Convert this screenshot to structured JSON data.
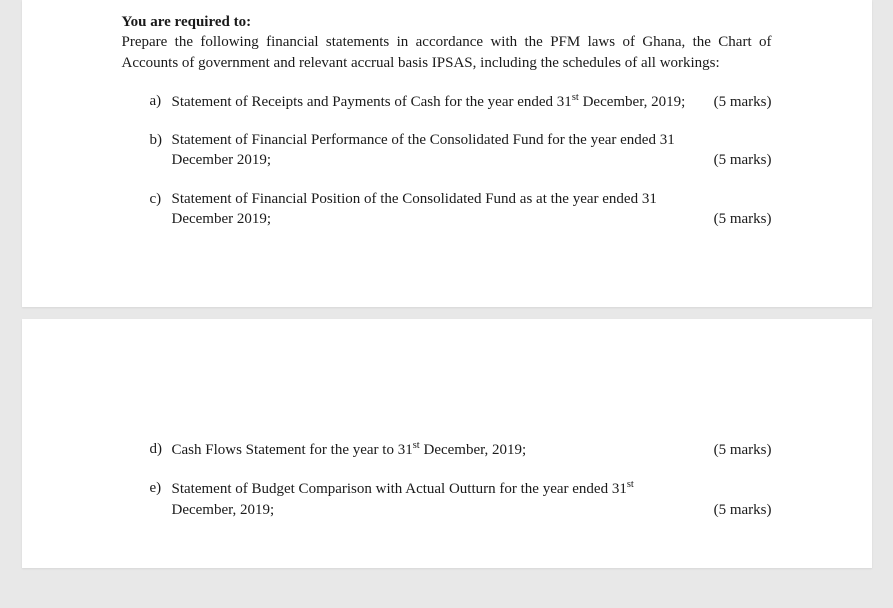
{
  "heading": "You are required to:",
  "intro": "Prepare the following financial statements in accordance with the PFM laws of Ghana, the Chart of Accounts of government and relevant accrual basis IPSAS, including the schedules of all workings:",
  "items_top": [
    {
      "bullet": "a)",
      "text_html": "Statement of Receipts and Payments of Cash for the year ended 31<sup>st</sup> December, 2019;",
      "marks": "(5 marks)"
    },
    {
      "bullet": "b)",
      "text_html": "Statement of Financial Performance of the Consolidated Fund for the year ended 31 December 2019;",
      "marks": "(5 marks)"
    },
    {
      "bullet": "c)",
      "text_html": "Statement of Financial Position of the Consolidated Fund as at the year ended 31 December 2019;",
      "marks": "(5 marks)"
    }
  ],
  "items_bottom": [
    {
      "bullet": "d)",
      "text_html": "Cash Flows Statement for the year to 31<sup>st</sup> December, 2019;",
      "marks": "(5 marks)"
    },
    {
      "bullet": "e)",
      "text_html": "Statement of Budget Comparison with Actual Outturn for the year ended 31<sup>st</sup> December, 2019;",
      "marks": "(5 marks)"
    }
  ]
}
